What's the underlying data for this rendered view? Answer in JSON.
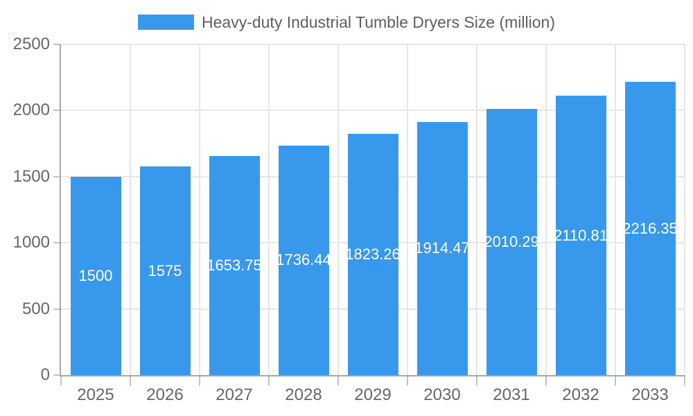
{
  "chart_data": {
    "type": "bar",
    "title": "Heavy-duty Industrial Tumble Dryers Size (million)",
    "categories": [
      "2025",
      "2026",
      "2027",
      "2028",
      "2029",
      "2030",
      "2031",
      "2032",
      "2033"
    ],
    "series": [
      {
        "name": "Heavy-duty Industrial Tumble Dryers Size (million)",
        "values": [
          1500,
          1575,
          1653.75,
          1736.44,
          1823.26,
          1914.47,
          2010.29,
          2110.81,
          2216.35
        ],
        "value_labels": [
          "1500",
          "1575",
          "1653.75",
          "1736.44",
          "1823.26",
          "1914.47",
          "2010.29",
          "2110.81",
          "2216.35"
        ]
      }
    ],
    "xlabel": "",
    "ylabel": "",
    "ylim": [
      0,
      2500
    ],
    "yticks": [
      0,
      500,
      1000,
      1500,
      2000,
      2500
    ],
    "grid": true,
    "legend_position": "top",
    "colors": {
      "bar": "#3899EC",
      "grid": "#E7E7E7",
      "axis": "#A6A6A6",
      "tick": "#C2C2C2",
      "axis_text": "#666666",
      "value_text": "#FFFFFF",
      "legend_text": "#5E5E5E"
    }
  }
}
